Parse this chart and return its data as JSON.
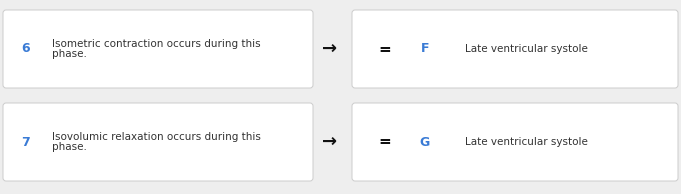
{
  "bg_color": "#eeeeee",
  "card_color": "#ffffff",
  "card_border_color": "#cccccc",
  "row1": {
    "number": "6",
    "number_color": "#3a7bd5",
    "question_line1": "Isometric contraction occurs during this",
    "question_line2": "phase.",
    "arrow": "→",
    "equals": "=",
    "letter": "F",
    "letter_color": "#3a7bd5",
    "answer": "Late ventricular systole"
  },
  "row2": {
    "number": "7",
    "number_color": "#3a7bd5",
    "question_line1": "Isovolumic relaxation occurs during this",
    "question_line2": "phase.",
    "arrow": "→",
    "equals": "=",
    "letter": "G",
    "letter_color": "#3a7bd5",
    "answer": "Late ventricular systole"
  },
  "text_color": "#333333",
  "text_fontsize": 7.5,
  "number_fontsize": 9.0,
  "arrow_fontsize": 13,
  "equals_fontsize": 11,
  "letter_fontsize": 9.0,
  "answer_fontsize": 7.5
}
